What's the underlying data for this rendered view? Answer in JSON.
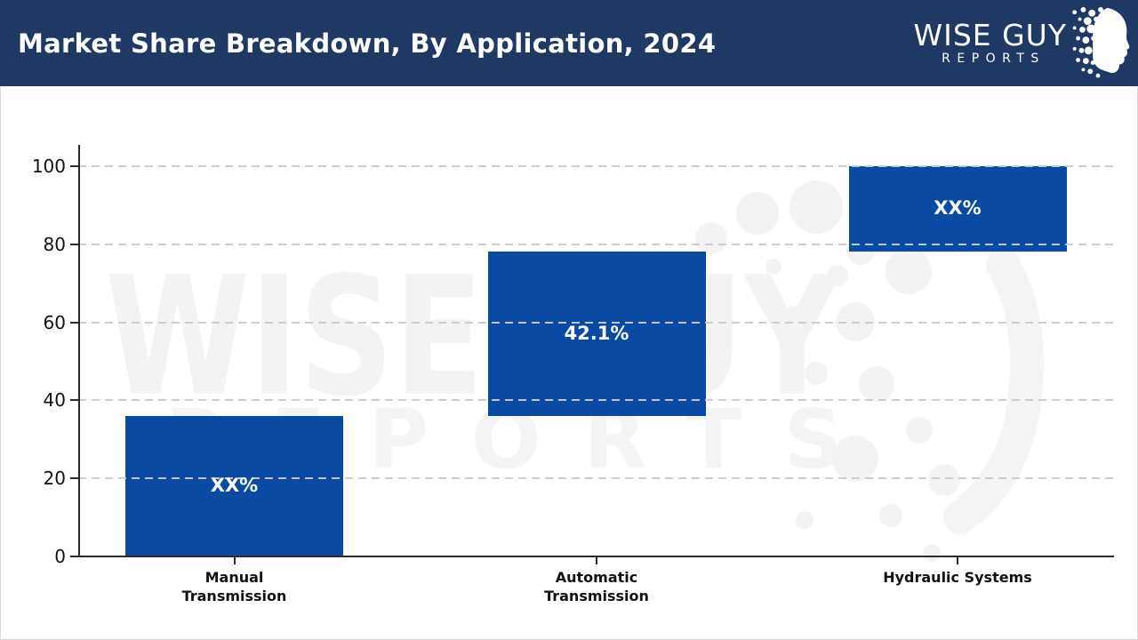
{
  "header": {
    "title": "Market Share Breakdown, By Application, 2024",
    "logo": {
      "line1": "WISE GUY",
      "line2": "REPORTS"
    }
  },
  "watermark": {
    "line1": "WISE GUY",
    "line2": "REPORTS"
  },
  "colors": {
    "header_bg": "#1f3864",
    "bar_fill": "#0b4aa2",
    "grid_line": "#cbcbcb",
    "axis_line": "#2a2a2a",
    "tick_text": "#111111",
    "bar_label_text": "#ffffff",
    "watermark": "#f3f3f3"
  },
  "chart_data": {
    "type": "bar",
    "subtype": "floating-segment (waterfall-style) vertical bars",
    "title": "Market Share Breakdown, By Application, 2024",
    "categories": [
      "Manual Transmission",
      "Automatic Transmission",
      "Hydraulic Systems"
    ],
    "category_label_lines": [
      [
        "Manual",
        "Transmission"
      ],
      [
        "Automatic",
        "Transmission"
      ],
      [
        "Hydraulic Systems"
      ]
    ],
    "bars": [
      {
        "category": "Manual Transmission",
        "range": [
          0,
          36
        ],
        "label": "XX%"
      },
      {
        "category": "Automatic Transmission",
        "range": [
          36,
          78.1
        ],
        "label": "42.1%"
      },
      {
        "category": "Hydraulic Systems",
        "range": [
          78.1,
          100
        ],
        "label": "XX%"
      }
    ],
    "yticks": [
      0,
      20,
      40,
      60,
      80,
      100
    ],
    "ylim": [
      0,
      105
    ],
    "xlabel": "",
    "ylabel": "",
    "grid": "horizontal dashed, drawn above bars",
    "legend": "none"
  }
}
